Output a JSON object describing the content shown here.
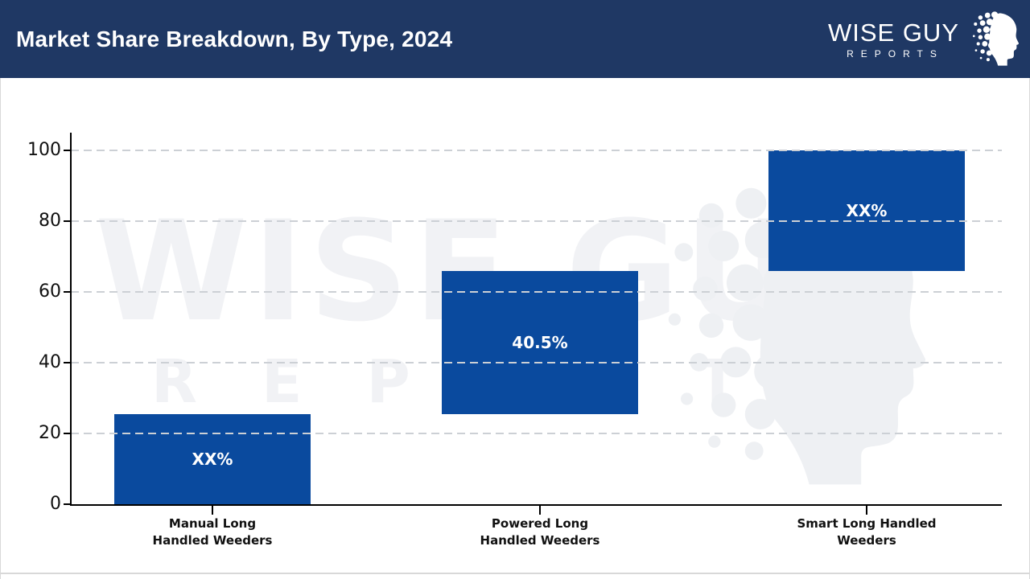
{
  "header": {
    "title": "Market Share Breakdown, By Type, 2024"
  },
  "brand": {
    "name": "WISE GUY",
    "subtitle": "REPORTS"
  },
  "watermark": {
    "line1": "WISE GUY",
    "line2": "REPORTS"
  },
  "chart_data": {
    "type": "bar",
    "variant": "floating-waterfall-bars",
    "title": "Market Share Breakdown, By Type, 2024",
    "categories": [
      "Manual Long Handled Weeders",
      "Powered Long Handled Weeders",
      "Smart Long Handled Weeders"
    ],
    "categories_lines": [
      [
        "Manual Long",
        "Handled Weeders"
      ],
      [
        "Powered Long",
        "Handled Weeders"
      ],
      [
        "Smart Long Handled",
        "Weeders"
      ]
    ],
    "segments": [
      {
        "category": "Manual Long Handled Weeders",
        "start": 0,
        "end": 25.5,
        "value": 25.5,
        "label": "XX%"
      },
      {
        "category": "Powered Long Handled Weeders",
        "start": 25.5,
        "end": 66,
        "value": 40.5,
        "label": "40.5%"
      },
      {
        "category": "Smart Long Handled Weeders",
        "start": 66,
        "end": 100,
        "value": 34,
        "label": "XX%"
      }
    ],
    "xlabel": "",
    "ylabel": "",
    "yticks": [
      0,
      20,
      40,
      60,
      80,
      100
    ],
    "ylim": [
      0,
      105
    ],
    "grid": {
      "horizontal": true,
      "style": "dashed"
    },
    "legend": null,
    "colors": {
      "bar": "#0a4a9e",
      "bar_label": "#ffffff",
      "grid": "#ccd0d5",
      "axis": "#000000",
      "header_bg": "#1f3864",
      "watermark": "#f1f2f5"
    }
  }
}
